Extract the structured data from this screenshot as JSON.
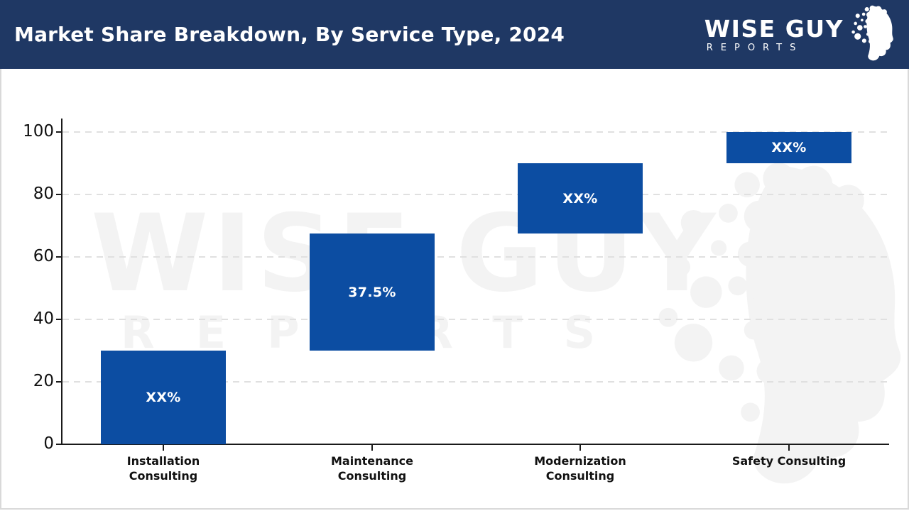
{
  "header": {
    "title": "Market Share Breakdown, By Service Type, 2024",
    "logo": {
      "brand": "WISE GUY",
      "sub": "REPORTS"
    }
  },
  "watermark": {
    "brand": "WISE GUY",
    "sub": "REPORTS"
  },
  "chart_data": {
    "type": "bar",
    "variant": "waterfall",
    "title": "Market Share Breakdown, By Service Type, 2024",
    "xlabel": "",
    "ylabel": "",
    "ylim": [
      0,
      104
    ],
    "yticks": [
      0,
      20,
      40,
      60,
      80,
      100
    ],
    "grid": "horizontal-dashed",
    "legend": "none",
    "bar_color": "#0c4da2",
    "value_label_color": "#ffffff",
    "categories": [
      "Installation\nConsulting",
      "Maintenance\nConsulting",
      "Modernization\nConsulting",
      "Safety Consulting"
    ],
    "bars": [
      {
        "category": "Installation Consulting",
        "start": 0,
        "end": 30,
        "height": 30,
        "label": "XX%"
      },
      {
        "category": "Maintenance Consulting",
        "start": 30,
        "end": 67.5,
        "height": 37.5,
        "label": "37.5%"
      },
      {
        "category": "Modernization Consulting",
        "start": 67.5,
        "end": 90,
        "height": 22.5,
        "label": "XX%"
      },
      {
        "category": "Safety Consulting",
        "start": 90,
        "end": 100,
        "height": 10,
        "label": "XX%"
      }
    ]
  },
  "colors": {
    "header_bg": "#1f3864",
    "bar_blue": "#0c4da2",
    "grid_line": "#e0e0e0",
    "axis_line": "#1a1a1a",
    "watermark_gray": "#f3f3f3",
    "frame_border": "#d9d9d9"
  }
}
